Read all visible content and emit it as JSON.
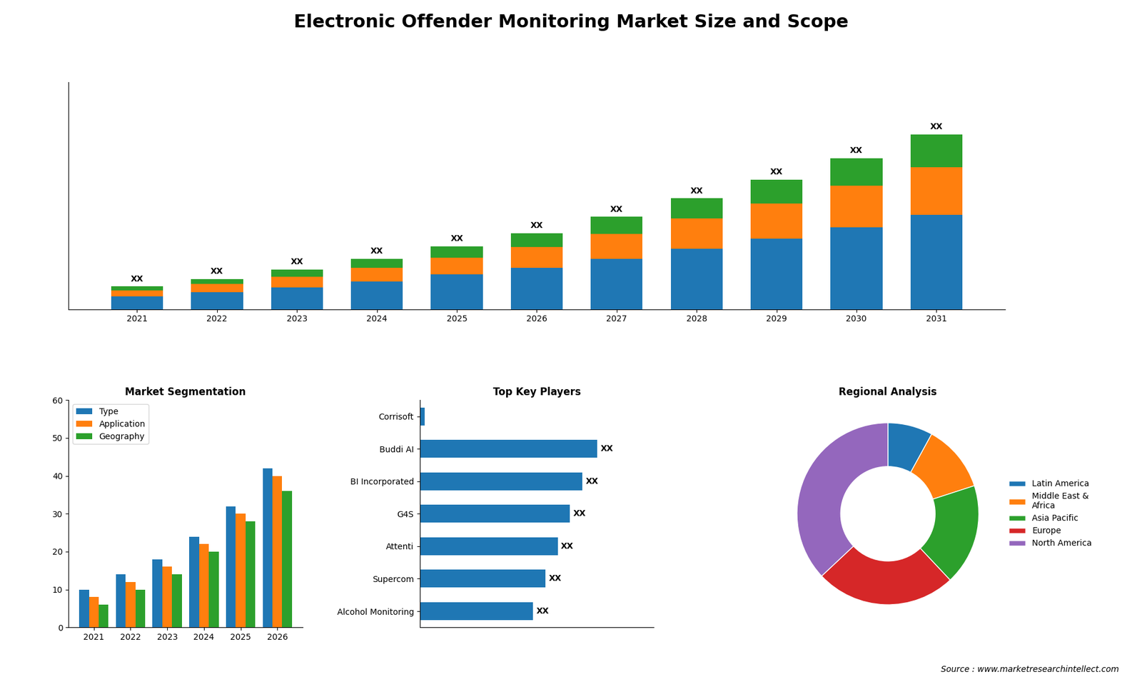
{
  "title": "Electronic Offender Monitoring Market Size and Scope",
  "annotations": [
    "Source : www.marketresearchintellect.com"
  ],
  "chart_data": [
    {
      "type": "bar",
      "stacked": true,
      "tick_labels": "x",
      "categories": [
        "2021",
        "2022",
        "2023",
        "2024",
        "2025",
        "2026",
        "2027",
        "2028",
        "2029",
        "2030",
        "2031"
      ],
      "series": [
        {
          "values": [
            1.0,
            1.35,
            1.75,
            2.2,
            2.75,
            3.3,
            4.0,
            4.8,
            5.6,
            6.5,
            7.5
          ]
        },
        {
          "values": [
            0.5,
            0.65,
            0.85,
            1.1,
            1.35,
            1.65,
            2.0,
            2.4,
            2.8,
            3.3,
            3.8
          ]
        },
        {
          "values": [
            0.3,
            0.4,
            0.55,
            0.7,
            0.9,
            1.1,
            1.35,
            1.6,
            1.9,
            2.2,
            2.6
          ]
        }
      ],
      "annotations": [
        "XX",
        "XX",
        "XX",
        "XX",
        "XX",
        "XX",
        "XX",
        "XX",
        "XX",
        "XX",
        "XX"
      ],
      "ylim": [
        0,
        18.07
      ],
      "yticks": []
    },
    {
      "type": "bar",
      "title": "Market Segmentation",
      "categories": [
        "2021",
        "2022",
        "2023",
        "2024",
        "2025",
        "2026"
      ],
      "series": [
        {
          "name": "Type",
          "values": [
            10,
            14,
            18,
            24,
            32,
            42
          ]
        },
        {
          "name": "Application",
          "values": [
            8,
            12,
            16,
            22,
            30,
            40
          ]
        },
        {
          "name": "Geography",
          "values": [
            6,
            10,
            14,
            20,
            28,
            36
          ]
        }
      ],
      "ylim": [
        0,
        60
      ],
      "yticks": [
        0,
        10,
        20,
        30,
        40,
        50,
        60
      ],
      "legend": "upper left"
    },
    {
      "type": "bar",
      "orientation": "horizontal",
      "title": "Top Key Players",
      "tick_labels": "y",
      "categories": [
        "Corrisoft",
        "Buddi AI",
        "BI Incorporated",
        "G4S",
        "Attenti",
        "Supercom",
        "Alcohol Monitoring"
      ],
      "values": [
        0.2,
        7.2,
        6.6,
        6.1,
        5.6,
        5.1,
        4.6
      ],
      "value_labels": [
        null,
        "XX",
        "XX",
        "XX",
        "XX",
        "XX",
        "XX"
      ],
      "xlim": [
        0,
        9.5
      ],
      "xticks": []
    },
    {
      "type": "donut",
      "title": "Regional Analysis",
      "categories": [
        "Latin America",
        "Middle East &\nAfrica",
        "Asia Pacific",
        "Europe",
        "North America"
      ],
      "values": [
        8,
        12,
        18,
        25,
        37
      ],
      "legend": "right"
    }
  ]
}
